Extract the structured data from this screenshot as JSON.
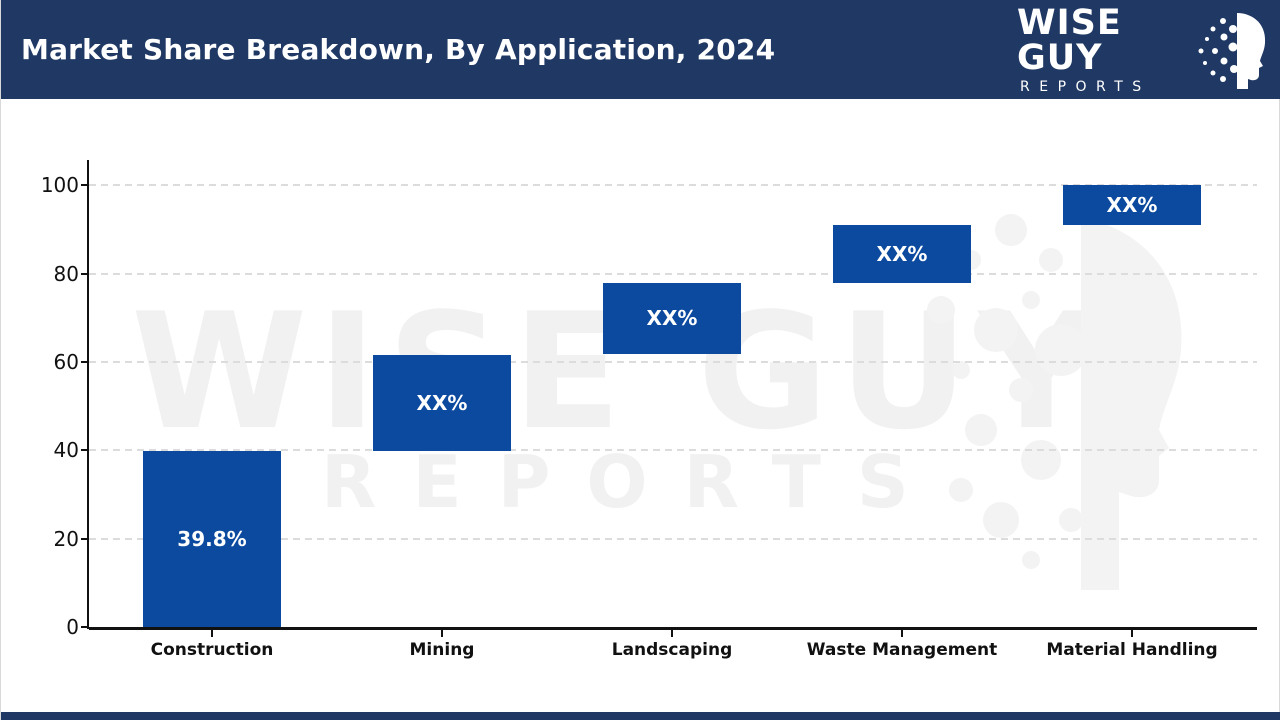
{
  "header": {
    "title": "Market Share Breakdown, By Application, 2024",
    "logo": {
      "line1": "WISE GUY",
      "line2": "REPORTS",
      "head_icon": "dotted-face-profile-icon"
    }
  },
  "watermark": {
    "line1": "WISE GUY",
    "line2": "REPORTS",
    "head_icon": "dotted-face-profile-watermark"
  },
  "chart_data": {
    "type": "bar",
    "variant": "floating-waterfall",
    "title": "Market Share Breakdown, By Application, 2024",
    "xlabel": "",
    "ylabel": "",
    "categories": [
      "Construction",
      "Mining",
      "Landscaping",
      "Waste Management",
      "Material Handling"
    ],
    "segments": [
      {
        "label": "Construction",
        "start": 0,
        "end": 39.8,
        "display": "39.8%"
      },
      {
        "label": "Mining",
        "start": 39.8,
        "end": 61.5,
        "display": "XX%"
      },
      {
        "label": "Landscaping",
        "start": 61.9,
        "end": 77.9,
        "display": "XX%"
      },
      {
        "label": "Waste Management",
        "start": 77.9,
        "end": 90.9,
        "display": "XX%"
      },
      {
        "label": "Material Handling",
        "start": 90.9,
        "end": 100,
        "display": "XX%"
      }
    ],
    "yticks": [
      0,
      20,
      40,
      60,
      80,
      100
    ],
    "ylim": [
      0,
      105
    ],
    "grid": "dashed-horizontal",
    "legend": "none",
    "bar_color": "#0b4a9e",
    "bar_label_color": "#ffffff",
    "axis_color": "#111111",
    "header_color": "#1f3864"
  }
}
